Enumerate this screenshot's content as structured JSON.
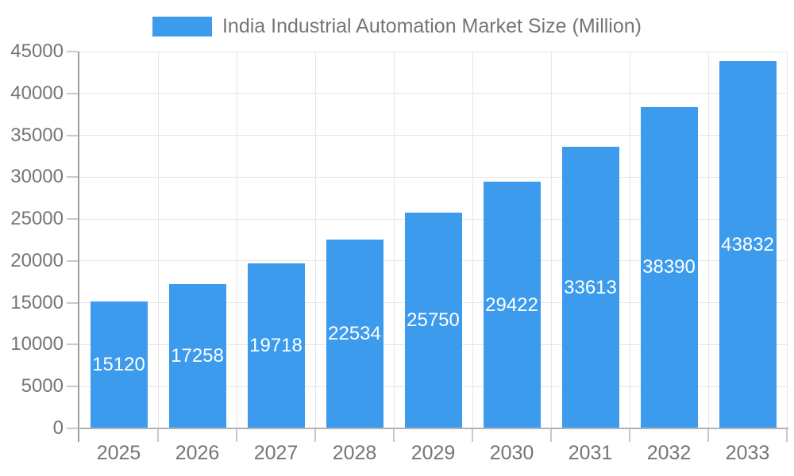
{
  "legend": {
    "label": "India Industrial Automation Market Size (Million)"
  },
  "chart_data": {
    "type": "bar",
    "title": "India Industrial Automation Market Size (Million)",
    "categories": [
      "2025",
      "2026",
      "2027",
      "2028",
      "2029",
      "2030",
      "2031",
      "2032",
      "2033"
    ],
    "values": [
      15120,
      17258,
      19718,
      22534,
      25750,
      29422,
      33613,
      38390,
      43832
    ],
    "series": [
      {
        "name": "India Industrial Automation Market Size (Million)",
        "values": [
          15120,
          17258,
          19718,
          22534,
          25750,
          29422,
          33613,
          38390,
          43832
        ]
      }
    ],
    "xlabel": "",
    "ylabel": "",
    "ylim": [
      0,
      45000
    ],
    "ytick_step": 5000,
    "yticks": [
      0,
      5000,
      10000,
      15000,
      20000,
      25000,
      30000,
      35000,
      40000,
      45000
    ],
    "grid": true,
    "legend_position": "top",
    "value_label_placement": "inside-center"
  },
  "colors": {
    "bar": "#3D9BEE",
    "axis_text": "#757575",
    "gridline": "#E6E6E6",
    "y_axis_line": "#9E9E9E",
    "x_axis_line": "#B3B3B3",
    "tick": "#C9C9C9",
    "value_label": "#FFFFFF",
    "background": "#FFFFFF"
  }
}
